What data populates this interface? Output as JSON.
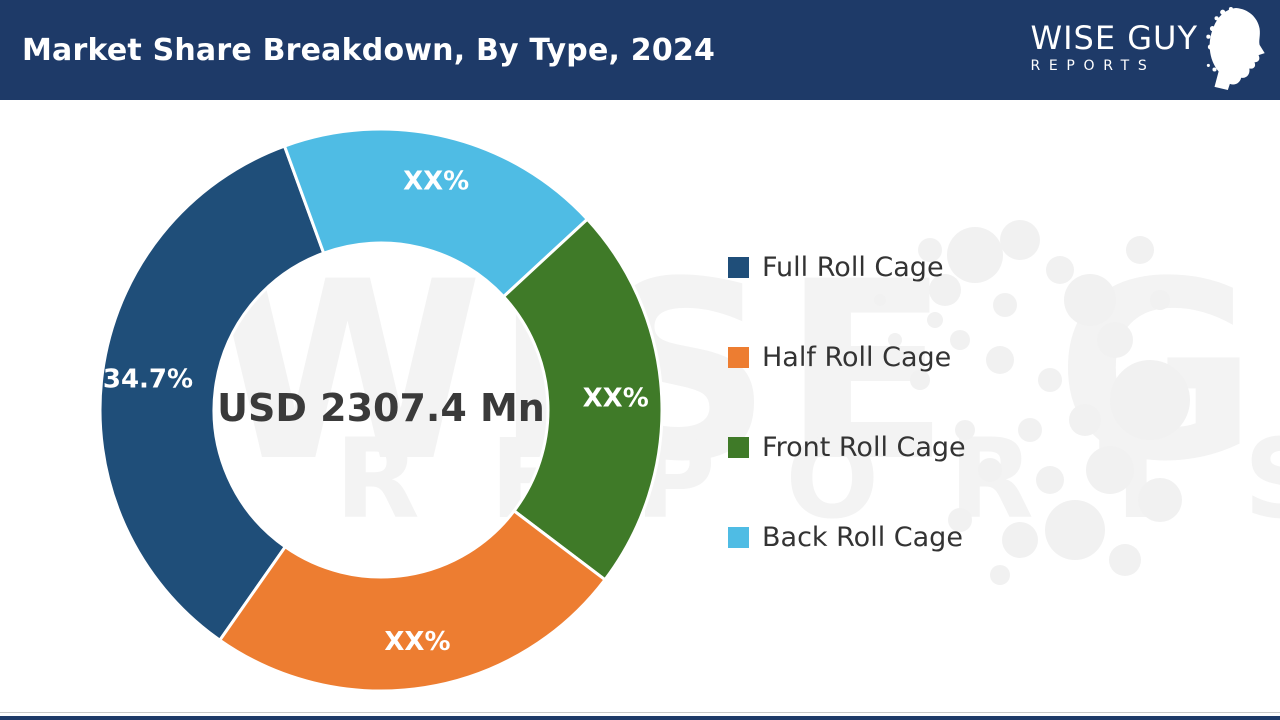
{
  "header": {
    "title": "Market Share Breakdown, By Type, 2024",
    "bg_color": "#1E3A68",
    "logo": {
      "line1": "WISE GUY",
      "line2": "REPORTS"
    }
  },
  "watermark": {
    "line1": "WISE GUY",
    "line2": "REPORTS"
  },
  "chart_data": {
    "type": "donut",
    "title": "Market Share Breakdown, By Type, 2024",
    "center_label": "USD 2307.4 Mn",
    "start_angle_deg_clockwise_from_top": 215,
    "legend_position": "right",
    "segments": [
      {
        "name": "Full Roll Cage",
        "value_pct": 34.7,
        "label": "34.7%",
        "color": "#1F4E79"
      },
      {
        "name": "Back Roll Cage",
        "value_pct": 18.7,
        "label": "XX%",
        "color": "#4FBCE4"
      },
      {
        "name": "Front Roll Cage",
        "value_pct": 22.2,
        "label": "XX%",
        "color": "#3F7A28"
      },
      {
        "name": "Half Roll Cage",
        "value_pct": 24.4,
        "label": "XX%",
        "color": "#ED7D31"
      }
    ]
  },
  "legend": {
    "items": [
      {
        "label": "Full Roll Cage",
        "color": "#1F4E79"
      },
      {
        "label": "Half Roll Cage",
        "color": "#ED7D31"
      },
      {
        "label": "Front Roll Cage",
        "color": "#3F7A28"
      },
      {
        "label": "Back Roll Cage",
        "color": "#4FBCE4"
      }
    ]
  }
}
